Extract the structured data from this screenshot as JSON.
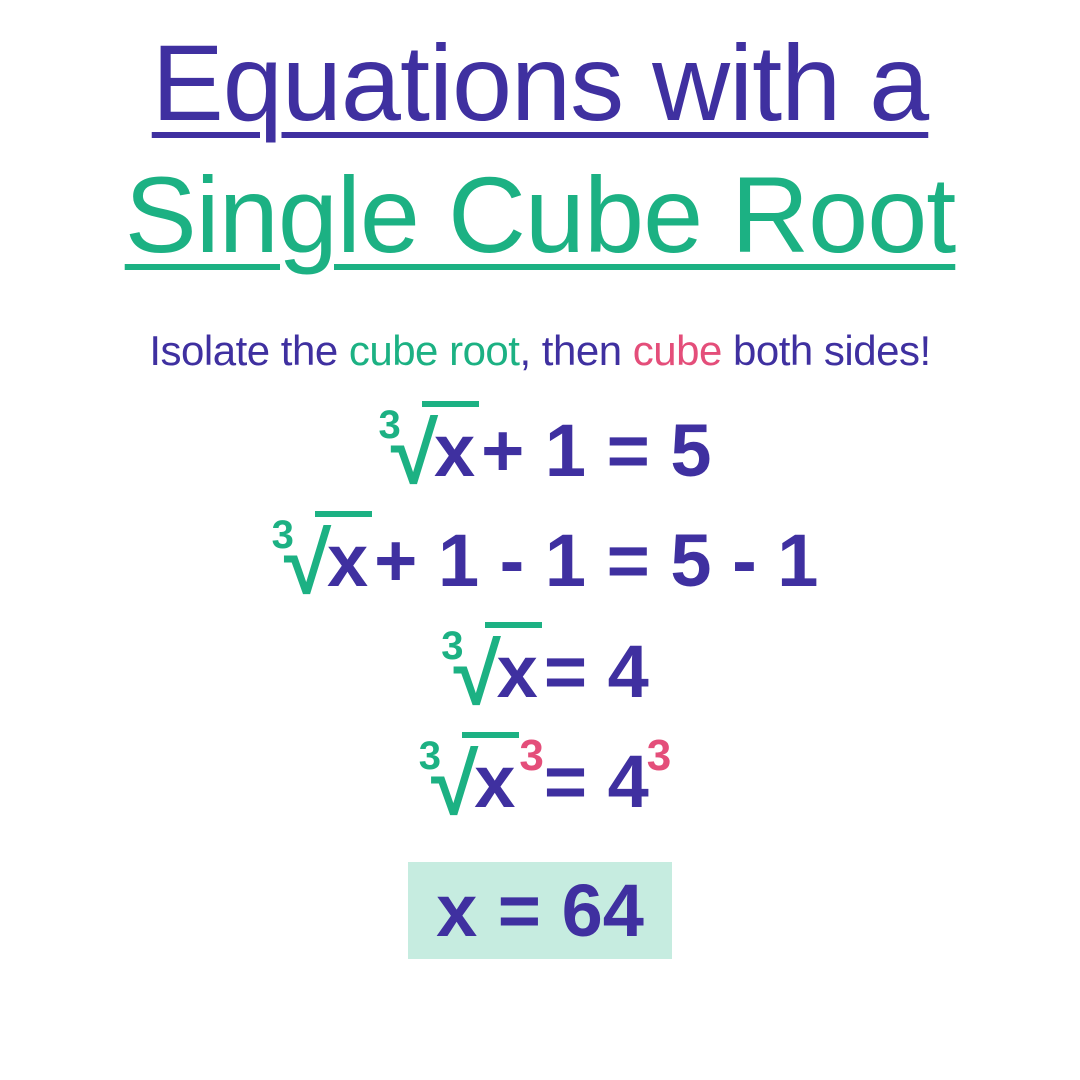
{
  "colors": {
    "purple": "#3f30a0",
    "green": "#1cb183",
    "pink": "#e44e7a",
    "highlight": "#c6ece0",
    "background": "#ffffff"
  },
  "title": {
    "line1": "Equations with a",
    "line2": "Single Cube Root"
  },
  "instruction": {
    "part1": "Isolate the ",
    "highlight1": "cube root",
    "part2": ", then ",
    "highlight2": "cube",
    "part3": " both sides!"
  },
  "equations": {
    "line1": {
      "index": "3",
      "radicand": "x",
      "rest": " + 1 = 5"
    },
    "line2": {
      "index": "3",
      "radicand": "x",
      "rest": " + 1 - 1 = 5 - 1"
    },
    "line3": {
      "index": "3",
      "radicand": "x",
      "rest": " = 4"
    },
    "line4": {
      "index": "3",
      "radicand": "x",
      "super1": "3",
      "mid": " = 4",
      "super2": "3"
    },
    "answer": "x = 64"
  }
}
